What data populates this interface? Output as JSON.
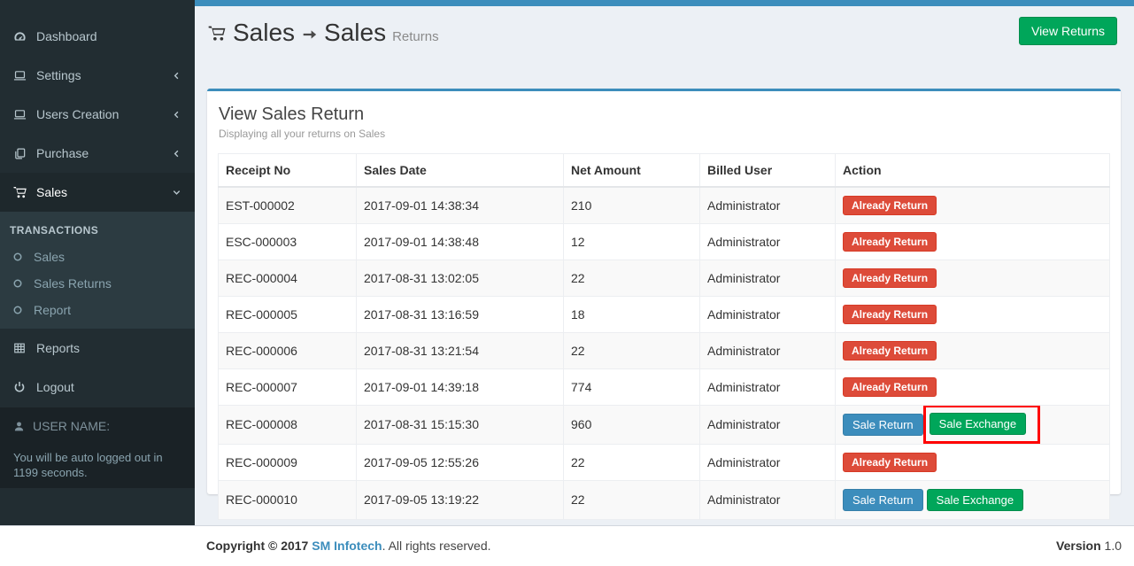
{
  "colors": {
    "accent_blue": "#3c8dbc",
    "success_green": "#00a65a",
    "danger_red": "#dd4b39",
    "highlight_red": "#ff0000",
    "sidebar_bg": "#222d32",
    "content_bg": "#ecf0f5"
  },
  "sidebar": {
    "items": [
      {
        "label": "Dashboard",
        "icon": "dashboard-icon",
        "chevron": null,
        "active": false
      },
      {
        "label": "Settings",
        "icon": "laptop-icon",
        "chevron": "left",
        "active": false
      },
      {
        "label": "Users Creation",
        "icon": "laptop-icon",
        "chevron": "left",
        "active": false
      },
      {
        "label": "Purchase",
        "icon": "copy-icon",
        "chevron": "left",
        "active": false
      },
      {
        "label": "Sales",
        "icon": "cart-icon",
        "chevron": "down",
        "active": true
      }
    ],
    "section_label": "TRANSACTIONS",
    "submenu": [
      {
        "label": "Sales",
        "icon": "circle-icon"
      },
      {
        "label": "Sales Returns",
        "icon": "circle-icon"
      },
      {
        "label": "Report",
        "icon": "circle-icon"
      }
    ],
    "bottom_items": [
      {
        "label": "Reports",
        "icon": "table-icon"
      },
      {
        "label": "Logout",
        "icon": "power-icon"
      }
    ],
    "user_label": "USER NAME:",
    "autologout_line1": "You will be auto logged out in",
    "autologout_line2": "1199 seconds."
  },
  "header": {
    "title_primary": "Sales",
    "title_secondary": "Sales",
    "title_sub": "Returns",
    "view_returns_label": "View Returns"
  },
  "panel": {
    "title": "View Sales Return",
    "subtitle": "Displaying all your returns on Sales"
  },
  "action_labels": {
    "already-return": "Already Return",
    "sale-return": "Sale Return",
    "sale-exchange": "Sale Exchange"
  },
  "table": {
    "headers": [
      "Receipt No",
      "Sales Date",
      "Net Amount",
      "Billed User",
      "Action"
    ],
    "rows": [
      {
        "receipt": "EST-000002",
        "date": "2017-09-01 14:38:34",
        "amount": "210",
        "user": "Administrator",
        "actions": [
          "already-return"
        ],
        "highlight_exchange": false
      },
      {
        "receipt": "ESC-000003",
        "date": "2017-09-01 14:38:48",
        "amount": "12",
        "user": "Administrator",
        "actions": [
          "already-return"
        ],
        "highlight_exchange": false
      },
      {
        "receipt": "REC-000004",
        "date": "2017-08-31 13:02:05",
        "amount": "22",
        "user": "Administrator",
        "actions": [
          "already-return"
        ],
        "highlight_exchange": false
      },
      {
        "receipt": "REC-000005",
        "date": "2017-08-31 13:16:59",
        "amount": "18",
        "user": "Administrator",
        "actions": [
          "already-return"
        ],
        "highlight_exchange": false
      },
      {
        "receipt": "REC-000006",
        "date": "2017-08-31 13:21:54",
        "amount": "22",
        "user": "Administrator",
        "actions": [
          "already-return"
        ],
        "highlight_exchange": false
      },
      {
        "receipt": "REC-000007",
        "date": "2017-09-01 14:39:18",
        "amount": "774",
        "user": "Administrator",
        "actions": [
          "already-return"
        ],
        "highlight_exchange": false
      },
      {
        "receipt": "REC-000008",
        "date": "2017-08-31 15:15:30",
        "amount": "960",
        "user": "Administrator",
        "actions": [
          "sale-return",
          "sale-exchange"
        ],
        "highlight_exchange": true
      },
      {
        "receipt": "REC-000009",
        "date": "2017-09-05 12:55:26",
        "amount": "22",
        "user": "Administrator",
        "actions": [
          "already-return"
        ],
        "highlight_exchange": false
      },
      {
        "receipt": "REC-000010",
        "date": "2017-09-05 13:19:22",
        "amount": "22",
        "user": "Administrator",
        "actions": [
          "sale-return",
          "sale-exchange"
        ],
        "highlight_exchange": false
      }
    ]
  },
  "footer": {
    "copyright_prefix": "Copyright © 2017",
    "company": "SM Infotech",
    "copyright_suffix": ". All rights reserved.",
    "version_label": "Version",
    "version_value": "1.0"
  }
}
